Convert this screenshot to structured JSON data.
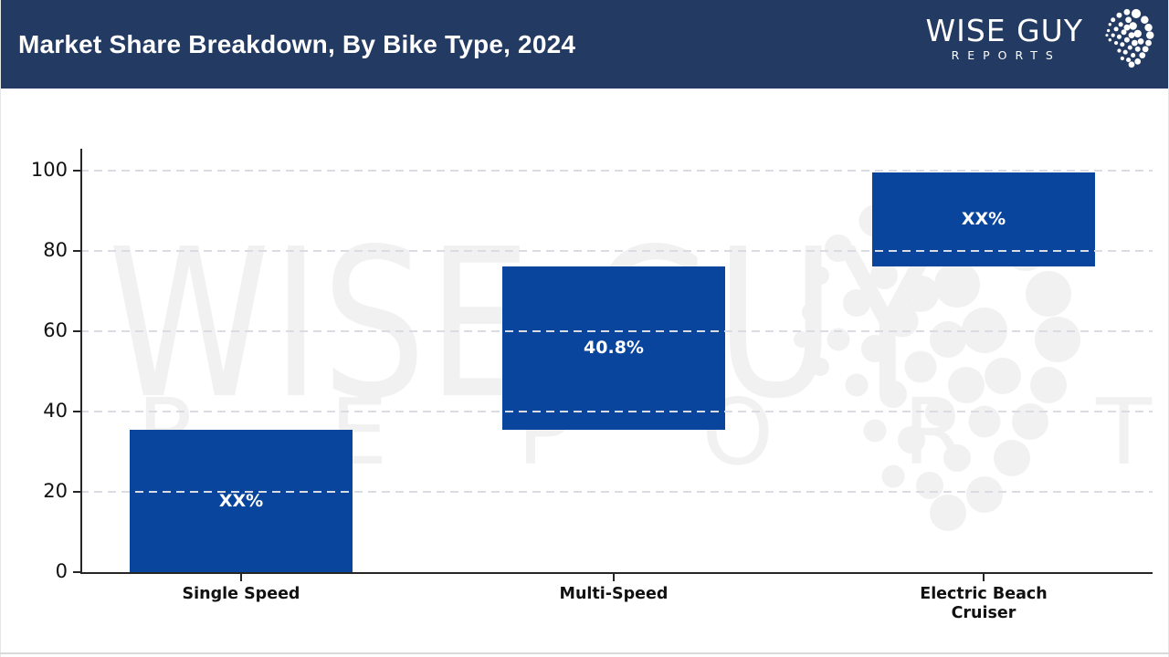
{
  "header": {
    "title": "Market Share Breakdown, By Bike Type, 2024",
    "logo": {
      "name": "WISE GUY",
      "sub": "REPORTS"
    }
  },
  "watermark": {
    "name": "WISE GUY",
    "sub": "R E P O R T S"
  },
  "colors": {
    "header_bg": "#233a63",
    "bar": "#09459d",
    "bar_label": "#ffffff",
    "axis": "#262626",
    "grid": "#d9dde3",
    "tick_label": "#111111",
    "watermark": "#f1f1f1"
  },
  "chart_data": {
    "type": "bar",
    "variant": "waterfall",
    "title": "Market Share Breakdown, By Bike Type, 2024",
    "categories": [
      "Single Speed",
      "Multi-Speed",
      "Electric Beach Cruiser"
    ],
    "bars": [
      {
        "category": "Single Speed",
        "start": 0,
        "end": 35.4,
        "label": "XX%"
      },
      {
        "category": "Multi-Speed",
        "start": 35.4,
        "end": 76.2,
        "label": "40.8%"
      },
      {
        "category": "Electric Beach Cruiser",
        "start": 76.2,
        "end": 99.6,
        "label": "XX%"
      }
    ],
    "yticks": [
      0,
      20,
      40,
      60,
      80,
      100
    ],
    "ylim": [
      0,
      107
    ],
    "xlabel": "",
    "ylabel": "",
    "grid": "horizontal-dashed",
    "legend": "none"
  }
}
